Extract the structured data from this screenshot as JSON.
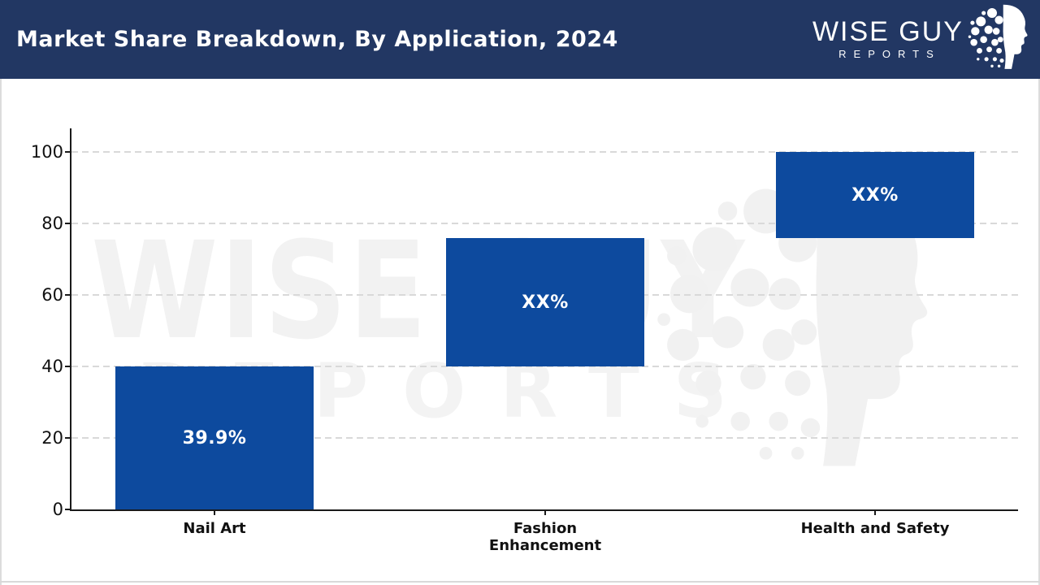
{
  "header": {
    "title": "Market Share Breakdown, By Application, 2024",
    "logo": {
      "line1": "WISE GUY",
      "line2": "REPORTS"
    }
  },
  "watermark": {
    "line1": "WISE GUY",
    "line2": "REPORTS"
  },
  "chart_data": {
    "type": "bar",
    "variant": "floating-stepped-segments",
    "title": "Market Share Breakdown, By Application, 2024",
    "categories": [
      "Nail Art",
      "Fashion\nEnhancement",
      "Health and Safety"
    ],
    "segments": [
      {
        "category": "Nail Art",
        "start": 0,
        "end": 39.9,
        "label": "39.9%"
      },
      {
        "category": "Fashion Enhancement",
        "start": 39.9,
        "end": 75.8,
        "label": "XX%"
      },
      {
        "category": "Health and Safety",
        "start": 75.8,
        "end": 100,
        "label": "XX%"
      }
    ],
    "ylim": [
      0,
      100
    ],
    "yticks": [
      0,
      20,
      40,
      60,
      80,
      100
    ],
    "grid": "horizontal-dashed",
    "legend": "none",
    "bar_color": "#0d4a9e",
    "label_color": "#ffffff"
  },
  "colors": {
    "header_bg": "#223763",
    "axis": "#1a1a1a",
    "grid": "#d9d9d9",
    "watermark": "#f2f2f2"
  }
}
